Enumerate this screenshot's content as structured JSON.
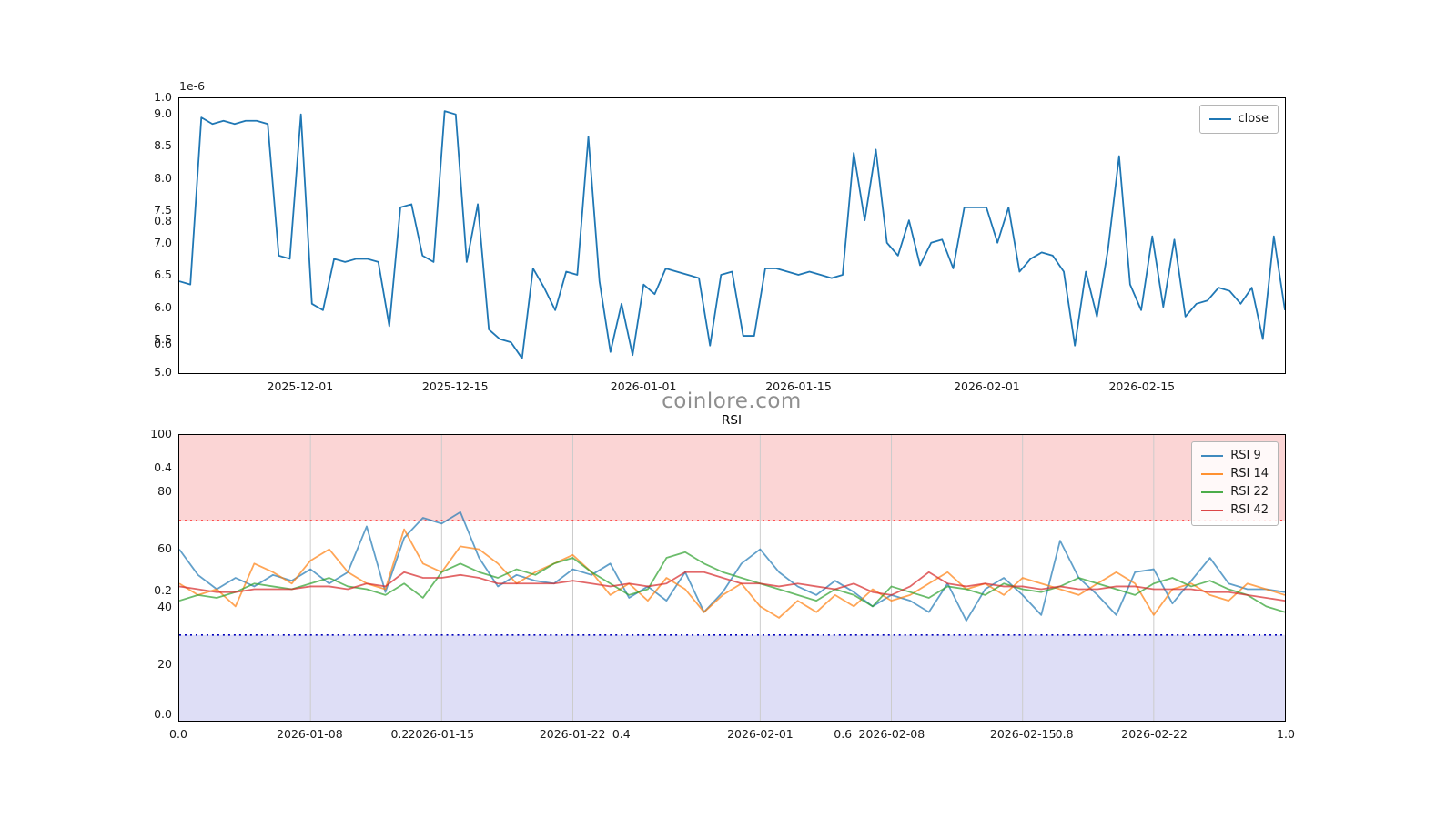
{
  "watermark": "coinlore.com",
  "background_axes": {
    "xticks": [
      "0.0",
      "0.2",
      "0.4",
      "0.6",
      "0.8",
      "1.0"
    ],
    "yticks": [
      "1.0",
      "0.8",
      "0.6",
      "0.4",
      "0.2",
      "0.0"
    ]
  },
  "chart_data": [
    {
      "type": "line",
      "name": "close-price",
      "title": "",
      "y_offset_label": "1e-6",
      "legend": [
        "close"
      ],
      "legend_position": "upper right",
      "ylim": [
        4.97,
        9.25
      ],
      "yticks": [
        9.0,
        8.5,
        8.0,
        7.5,
        7.0,
        6.5,
        6.0,
        5.5,
        5.0
      ],
      "ytick_labels": [
        "9.0",
        "8.5",
        "8.0",
        "7.5",
        "7.0",
        "6.5",
        "6.0",
        "5.5",
        "5.0"
      ],
      "x_start_date": "2025-11-20",
      "x_days": 100,
      "xticks": [
        {
          "label": "2025-12-01",
          "day": 11
        },
        {
          "label": "2025-12-15",
          "day": 25
        },
        {
          "label": "2026-01-01",
          "day": 42
        },
        {
          "label": "2026-01-15",
          "day": 56
        },
        {
          "label": "2026-02-01",
          "day": 73
        },
        {
          "label": "2026-02-15",
          "day": 87
        }
      ],
      "grid": false,
      "series": [
        {
          "name": "close",
          "color": "#1f77b4",
          "opacity": 1,
          "unit_multiplier": "1e-6",
          "values": [
            6.4,
            6.35,
            8.95,
            8.85,
            8.9,
            8.85,
            8.9,
            8.9,
            8.85,
            6.8,
            6.75,
            9.0,
            6.05,
            5.95,
            6.75,
            6.7,
            6.75,
            6.75,
            6.7,
            5.7,
            7.55,
            7.6,
            6.8,
            6.7,
            9.05,
            9.0,
            6.7,
            7.6,
            5.65,
            5.5,
            5.45,
            5.2,
            6.6,
            6.3,
            5.95,
            6.55,
            6.5,
            8.65,
            6.4,
            5.3,
            6.05,
            5.25,
            6.35,
            6.2,
            6.6,
            6.55,
            6.5,
            6.45,
            5.4,
            6.5,
            6.55,
            5.55,
            5.55,
            6.6,
            6.6,
            6.55,
            6.5,
            6.55,
            6.5,
            6.45,
            6.5,
            8.4,
            7.35,
            8.45,
            7.0,
            6.8,
            7.35,
            6.65,
            7.0,
            7.05,
            6.6,
            7.55,
            7.55,
            7.55,
            7.0,
            7.55,
            6.55,
            6.75,
            6.85,
            6.8,
            6.55,
            5.4,
            6.55,
            5.85,
            6.9,
            8.35,
            6.35,
            5.95,
            7.1,
            6.0,
            7.05,
            5.85,
            6.05,
            6.1,
            6.3,
            6.25,
            6.05,
            6.3,
            5.5,
            7.1,
            5.95
          ]
        }
      ]
    },
    {
      "type": "line",
      "name": "rsi",
      "title": "RSI",
      "ylim": [
        0,
        100
      ],
      "yticks": [
        100,
        80,
        60,
        40,
        20
      ],
      "ytick_labels": [
        "100",
        "80",
        "60",
        "40",
        "20"
      ],
      "x_start_date": "2026-01-01",
      "x_days": 59,
      "xticks": [
        {
          "label": "2026-01-08",
          "day": 7
        },
        {
          "label": "2026-01-15",
          "day": 14
        },
        {
          "label": "2026-01-22",
          "day": 21
        },
        {
          "label": "2026-02-01",
          "day": 31
        },
        {
          "label": "2026-02-08",
          "day": 38
        },
        {
          "label": "2026-02-15",
          "day": 45
        },
        {
          "label": "2026-02-22",
          "day": 52
        }
      ],
      "grid": true,
      "grid_color": "#cccccc",
      "overbought": {
        "level": 70,
        "line_color": "#ff0000",
        "fill": "#fbd5d5",
        "line_style": "dotted"
      },
      "oversold": {
        "level": 30,
        "line_color": "#0000bb",
        "fill": "#dedef6",
        "line_style": "dotted"
      },
      "legend_position": "upper right",
      "series": [
        {
          "name": "RSI 9",
          "color": "#1f77b4",
          "opacity": 0.7,
          "values": [
            60,
            51,
            46,
            50,
            47,
            51,
            49,
            53,
            48,
            52,
            68,
            45,
            64,
            71,
            69,
            73,
            57,
            47,
            51,
            49,
            48,
            53,
            51,
            55,
            43,
            47,
            42,
            52,
            38,
            45,
            55,
            60,
            52,
            47,
            44,
            49,
            45,
            40,
            44,
            42,
            38,
            48,
            35,
            46,
            50,
            44,
            37,
            63,
            50,
            44,
            37,
            52,
            53,
            41,
            49,
            57,
            48,
            46,
            46,
            45
          ]
        },
        {
          "name": "RSI 14",
          "color": "#ff7f0e",
          "opacity": 0.7,
          "values": [
            48,
            44,
            46,
            40,
            55,
            52,
            48,
            56,
            60,
            52,
            48,
            46,
            67,
            55,
            52,
            61,
            60,
            55,
            48,
            52,
            55,
            58,
            52,
            44,
            48,
            42,
            50,
            46,
            38,
            44,
            48,
            40,
            36,
            42,
            38,
            44,
            40,
            46,
            42,
            44,
            48,
            52,
            46,
            48,
            44,
            50,
            48,
            46,
            44,
            48,
            52,
            48,
            37,
            46,
            48,
            44,
            42,
            48,
            46,
            44
          ]
        },
        {
          "name": "RSI 22",
          "color": "#2ca02c",
          "opacity": 0.7,
          "values": [
            42,
            44,
            43,
            45,
            48,
            47,
            46,
            48,
            50,
            47,
            46,
            44,
            48,
            43,
            52,
            55,
            52,
            50,
            53,
            51,
            55,
            57,
            52,
            48,
            44,
            46,
            57,
            59,
            55,
            52,
            50,
            48,
            46,
            44,
            42,
            46,
            44,
            40,
            47,
            45,
            43,
            47,
            46,
            44,
            48,
            46,
            45,
            47,
            50,
            48,
            46,
            44,
            48,
            50,
            47,
            49,
            46,
            44,
            40,
            38
          ]
        },
        {
          "name": "RSI 42",
          "color": "#d62728",
          "opacity": 0.7,
          "values": [
            47,
            46,
            45,
            45,
            46,
            46,
            46,
            47,
            47,
            46,
            48,
            47,
            52,
            50,
            50,
            51,
            50,
            48,
            48,
            48,
            48,
            49,
            48,
            47,
            48,
            47,
            48,
            52,
            52,
            50,
            48,
            48,
            47,
            48,
            47,
            46,
            48,
            45,
            44,
            47,
            52,
            48,
            47,
            48,
            47,
            47,
            46,
            47,
            46,
            46,
            47,
            47,
            46,
            46,
            46,
            45,
            45,
            44,
            43,
            42
          ]
        }
      ]
    }
  ]
}
